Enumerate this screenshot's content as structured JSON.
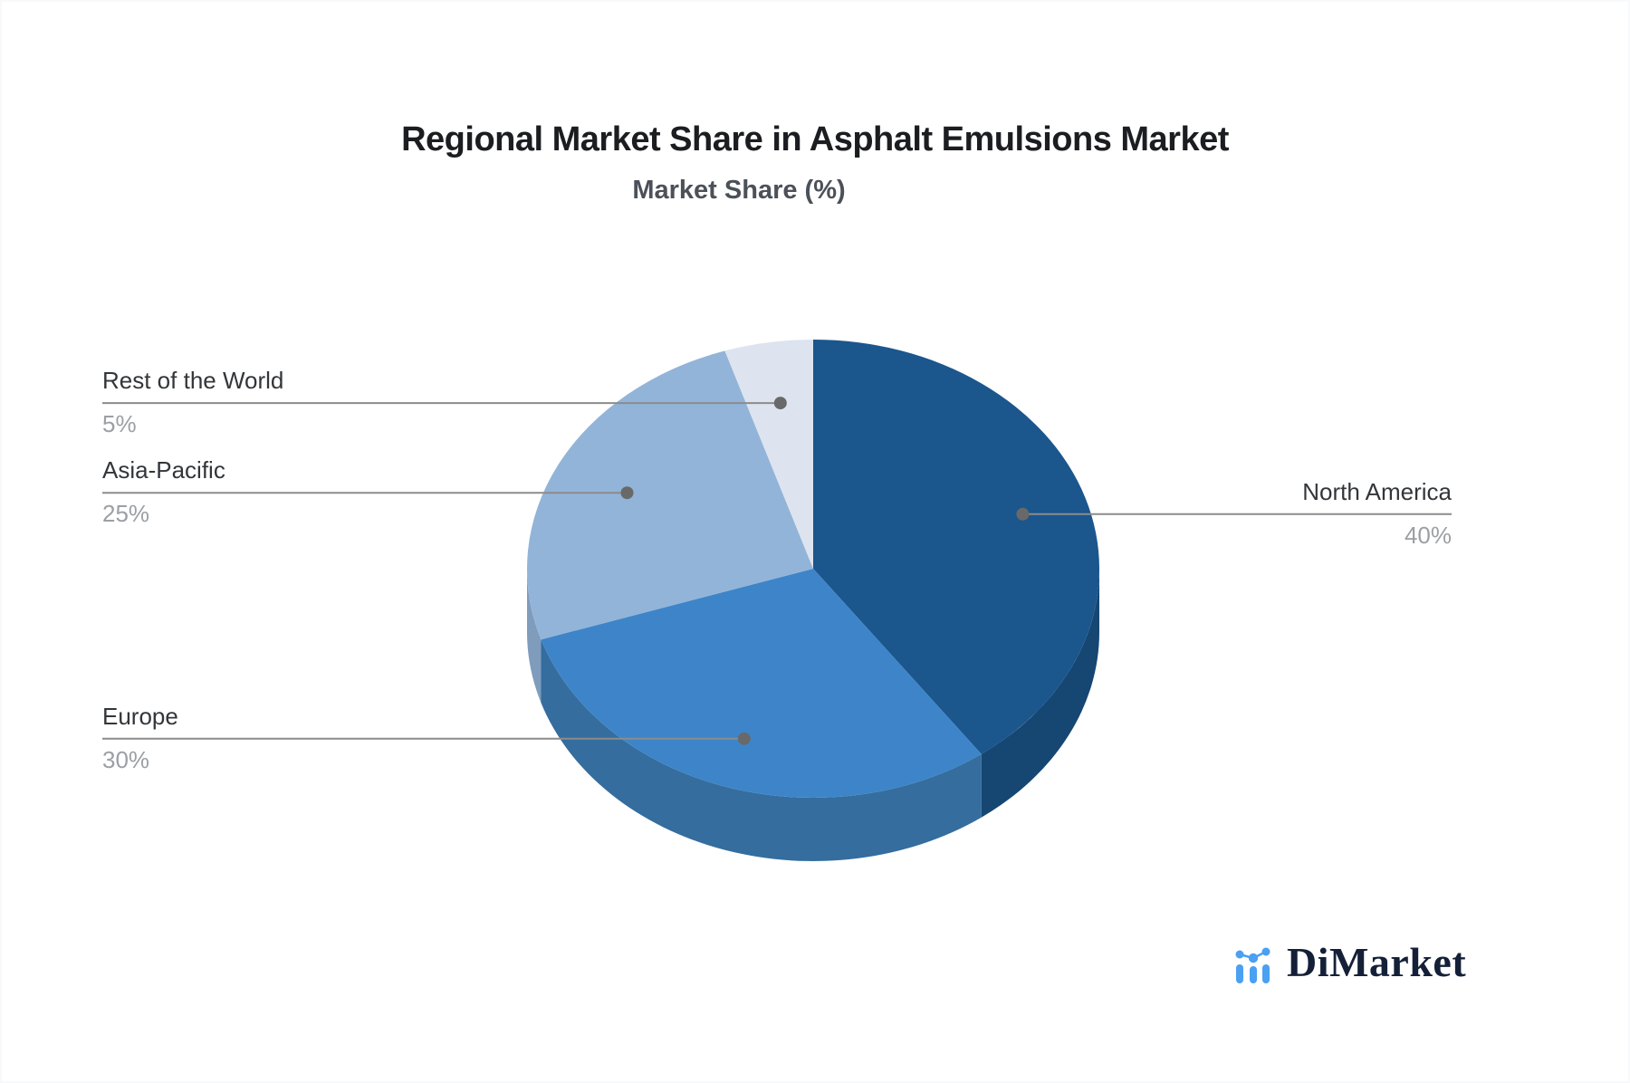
{
  "title": "Regional Market Share in Asphalt Emulsions Market",
  "subtitle": "Market Share (%)",
  "logo": {
    "text": "DiMarket",
    "icon": "bar-line-chart-icon",
    "icon_color": "#4aa0f2",
    "text_color": "#142038"
  },
  "chart_data": {
    "type": "pie",
    "style": "3d",
    "title": "Regional Market Share in Asphalt Emulsions Market",
    "subtitle": "Market Share (%)",
    "unit": "%",
    "start_angle_deg": 0,
    "direction": "clockwise",
    "labels": [
      "North America",
      "Europe",
      "Asia-Pacific",
      "Rest of the World"
    ],
    "values": [
      40,
      30,
      25,
      5
    ],
    "slices": [
      {
        "label": "North America",
        "value": 40,
        "value_label": "40%",
        "color": "#1b568d",
        "side_color": "#164672",
        "label_side": "right"
      },
      {
        "label": "Europe",
        "value": 30,
        "value_label": "30%",
        "color": "#3d85c8",
        "side_color": "#346d9e",
        "label_side": "left"
      },
      {
        "label": "Asia-Pacific",
        "value": 25,
        "value_label": "25%",
        "color": "#92b4d8",
        "side_color": "#7f9cbd",
        "label_side": "left"
      },
      {
        "label": "Rest of the World",
        "value": 5,
        "value_label": "5%",
        "color": "#dde4ef",
        "side_color": "#c2cddd",
        "label_side": "left"
      }
    ],
    "leader_line_color": "#8c8c8c",
    "leader_dot_color": "#696969",
    "label_color": "#333639",
    "value_color": "#9aa0a6",
    "legend": "none",
    "grid": "off"
  }
}
